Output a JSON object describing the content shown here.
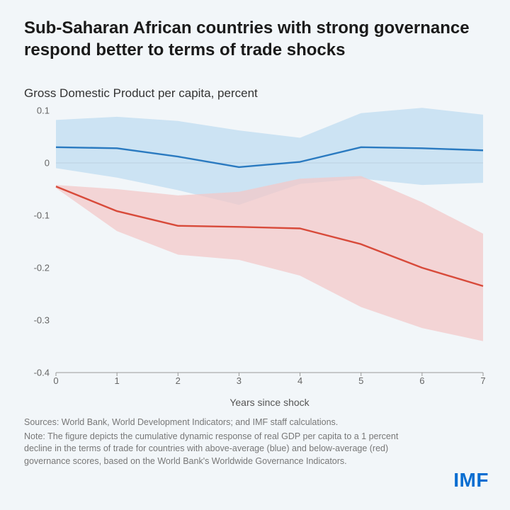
{
  "title": "Sub-Saharan African countries with strong governance respond better to terms of trade shocks",
  "subtitle": "Gross Domestic Product per capita, percent",
  "chart": {
    "type": "line-with-band",
    "background_color": "#f2f6f9",
    "xlabel": "Years since shock",
    "xlim": [
      0,
      7
    ],
    "ylim": [
      -0.4,
      0.1
    ],
    "xticks": [
      0,
      1,
      2,
      3,
      4,
      5,
      6,
      7
    ],
    "yticks": [
      0.1,
      0,
      -0.1,
      -0.2,
      -0.3,
      -0.4
    ],
    "zero_line_color": "#888888",
    "grid_color": "#e0e5e9",
    "tick_fontsize": 13,
    "label_fontsize": 14,
    "series": [
      {
        "name": "above-average-governance",
        "line_color": "#2a7ac0",
        "band_color": "#c5dff2",
        "band_opacity": 0.85,
        "line_width": 2.4,
        "x": [
          0,
          1,
          2,
          3,
          4,
          5,
          6,
          7
        ],
        "y": [
          0.03,
          0.028,
          0.012,
          -0.008,
          0.002,
          0.03,
          0.028,
          0.024
        ],
        "upper": [
          0.082,
          0.088,
          0.08,
          0.062,
          0.048,
          0.095,
          0.105,
          0.092
        ],
        "lower": [
          -0.01,
          -0.028,
          -0.052,
          -0.08,
          -0.04,
          -0.03,
          -0.042,
          -0.038
        ]
      },
      {
        "name": "below-average-governance",
        "line_color": "#d84a3a",
        "band_color": "#f3c8c8",
        "band_opacity": 0.75,
        "line_width": 2.4,
        "x": [
          0,
          1,
          2,
          3,
          4,
          5,
          6,
          7
        ],
        "y": [
          -0.045,
          -0.092,
          -0.12,
          -0.122,
          -0.125,
          -0.155,
          -0.2,
          -0.235
        ],
        "upper": [
          -0.042,
          -0.05,
          -0.062,
          -0.055,
          -0.03,
          -0.025,
          -0.075,
          -0.135
        ],
        "lower": [
          -0.048,
          -0.13,
          -0.175,
          -0.185,
          -0.215,
          -0.275,
          -0.315,
          -0.34
        ]
      }
    ]
  },
  "sources_text": "Sources: World Bank, World Development Indicators; and IMF staff calculations.",
  "note_text": "Note: The figure depicts the cumulative dynamic response of real GDP per capita to a 1 percent decline in the terms of trade for countries with above-average (blue) and below-average (red) governance scores, based on the World Bank's Worldwide Governance Indicators.",
  "logo_text": "IMF",
  "logo_color": "#0a6ed1"
}
